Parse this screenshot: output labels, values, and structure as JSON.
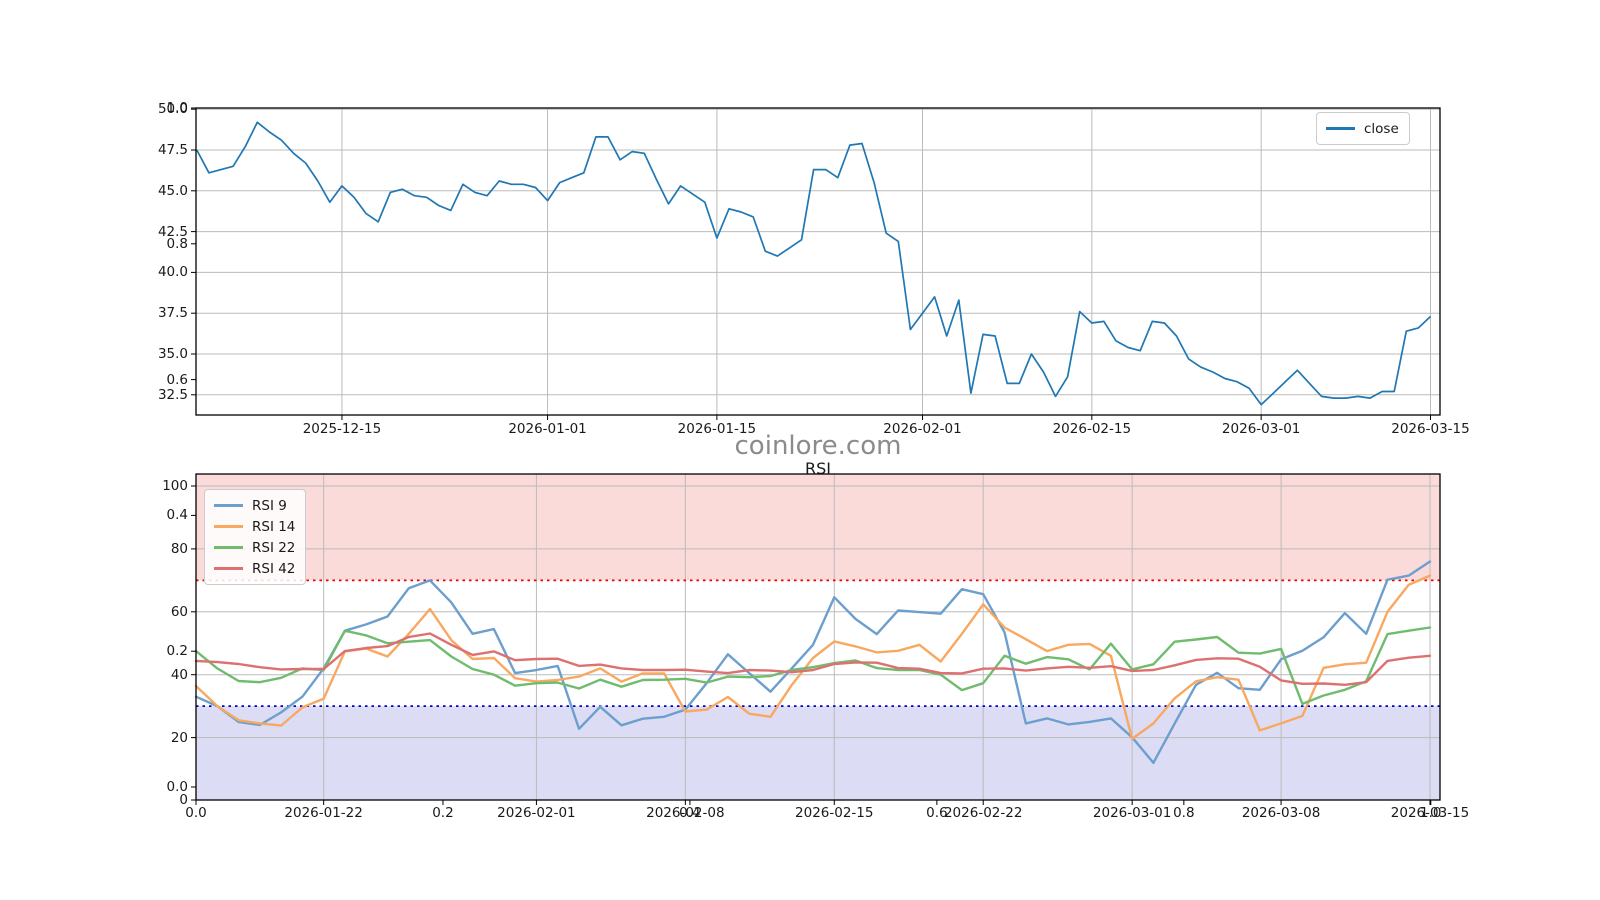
{
  "watermark": "coinlore.com",
  "colors": {
    "close_line": "#1f77b4",
    "rsi9": "#6c9fce",
    "rsi14": "#f8a860",
    "rsi22": "#6fbc6f",
    "rsi42": "#dd7070",
    "overbought_band": "#fbdada",
    "oversold_band": "#dcdcf5",
    "overbought_line": "#ec0000",
    "oversold_line": "#0000cc",
    "grid": "#bbbbbb",
    "watermark_gray": "#8b8b8b"
  },
  "chart_data": [
    {
      "id": "price",
      "type": "line",
      "title": "",
      "x_start_date": "2025-12-03",
      "x_freq": "daily",
      "legend_position": "upper right",
      "grid": true,
      "ylim": [
        31.3,
        50.1
      ],
      "ytick_labels": [
        "50.0",
        "47.5",
        "45.0",
        "42.5",
        "40.0",
        "37.5",
        "35.0",
        "32.5"
      ],
      "ytick_values": [
        50,
        47.5,
        45,
        42.5,
        40,
        37.5,
        35,
        32.5
      ],
      "xtick_labels": [
        "2025-12-15",
        "2026-01-01",
        "2026-01-15",
        "2026-02-01",
        "2026-02-15",
        "2026-03-01",
        "2026-03-15"
      ],
      "xtick_day_index": [
        12,
        29,
        43,
        60,
        74,
        88,
        102
      ],
      "series": [
        {
          "name": "close",
          "color": "#1f77b4",
          "values": [
            47.5,
            46.1,
            46.3,
            46.5,
            47.7,
            49.2,
            48.6,
            48.1,
            47.3,
            46.7,
            45.6,
            44.3,
            45.3,
            44.6,
            43.6,
            43.1,
            44.9,
            45.1,
            44.7,
            44.6,
            44.1,
            43.8,
            45.4,
            44.9,
            44.7,
            45.6,
            45.4,
            45.4,
            45.2,
            44.4,
            45.5,
            45.8,
            46.1,
            48.3,
            48.3,
            46.9,
            47.4,
            47.3,
            45.7,
            44.2,
            45.3,
            44.8,
            44.3,
            42.1,
            43.9,
            43.7,
            43.4,
            41.3,
            41.0,
            41.5,
            42.0,
            46.3,
            46.3,
            45.8,
            47.8,
            47.9,
            45.5,
            42.4,
            41.9,
            36.5,
            37.5,
            38.5,
            36.1,
            38.3,
            32.6,
            36.2,
            36.1,
            33.2,
            33.2,
            35.0,
            33.9,
            32.4,
            33.6,
            37.6,
            36.9,
            37.0,
            35.8,
            35.4,
            35.2,
            37.0,
            36.9,
            36.1,
            34.7,
            34.2,
            33.9,
            33.5,
            33.3,
            32.9,
            31.9,
            32.6,
            33.3,
            34.0,
            33.2,
            32.4,
            32.3,
            32.3,
            32.4,
            32.3,
            32.7,
            32.7,
            36.4,
            36.6,
            37.3
          ]
        }
      ]
    },
    {
      "id": "rsi",
      "type": "line",
      "title": "RSI",
      "x_start_date": "2026-01-16",
      "x_freq": "daily",
      "legend_position": "upper left",
      "grid": true,
      "ylim": [
        0,
        104
      ],
      "ytick_labels": [
        "100",
        "80",
        "60",
        "40",
        "20",
        "0"
      ],
      "ytick_values": [
        100,
        80,
        60,
        40,
        20,
        0
      ],
      "xtick_labels": [
        "2026-01-22",
        "2026-02-01",
        "2026-02-08",
        "2026-02-15",
        "2026-02-22",
        "2026-03-01",
        "2026-03-08",
        "2026-03-15"
      ],
      "xtick_day_index": [
        6,
        16,
        23,
        30,
        37,
        44,
        51,
        58
      ],
      "bands": [
        {
          "from": 70,
          "to": 104,
          "color": "#fbdada",
          "meaning": "overbought"
        },
        {
          "from": 0,
          "to": 30,
          "color": "#dcdcf5",
          "meaning": "oversold"
        }
      ],
      "hlines": [
        {
          "value": 70,
          "color": "#ec0000",
          "style": "dotted"
        },
        {
          "value": 30,
          "color": "#0000cc",
          "style": "dotted"
        }
      ],
      "series": [
        {
          "name": "RSI 9",
          "color": "#6c9fce",
          "values": [
            33,
            30,
            25,
            24,
            28,
            33,
            42,
            54,
            56,
            58.5,
            67.5,
            70,
            63,
            53,
            54.5,
            40.5,
            41.5,
            42.8,
            22.8,
            29.8,
            23.9,
            26,
            26.6,
            28.9,
            37.3,
            46.5,
            40.5,
            34.6,
            42,
            49.5,
            64.6,
            57.7,
            52.9,
            60.4,
            59.9,
            59.4,
            67.2,
            65.6,
            53.5,
            24.5,
            26.1,
            24.2,
            25,
            26.1,
            20.1,
            12,
            24.5,
            36.8,
            40.6,
            35.7,
            35.2,
            44.9,
            47.6,
            51.9,
            59.6,
            53,
            70.2,
            71.5,
            76
          ]
        },
        {
          "name": "RSI 14",
          "color": "#f8a860",
          "values": [
            36.4,
            30,
            25.5,
            24.5,
            23.8,
            29.6,
            32.4,
            47.4,
            48.3,
            45.8,
            53,
            60.9,
            51,
            45,
            45.3,
            38.9,
            37.8,
            38.3,
            39.4,
            42,
            37.8,
            40.4,
            40.4,
            28.3,
            28.9,
            32.9,
            27.6,
            26.6,
            36.7,
            45.3,
            50.6,
            49,
            47.1,
            47.6,
            49.5,
            44.2,
            53,
            62.4,
            55,
            51.3,
            47.5,
            49.5,
            49.8,
            46,
            19.6,
            24.5,
            32.5,
            37.9,
            39.2,
            38.4,
            22.3,
            24.5,
            26.9,
            42.2,
            43.3,
            43.8,
            60,
            68.6,
            71.5
          ]
        },
        {
          "name": "RSI 22",
          "color": "#6fbc6f",
          "values": [
            47.5,
            42,
            38,
            37.6,
            39,
            42,
            41.5,
            54,
            52.5,
            50,
            50.5,
            51,
            45.8,
            41.8,
            40,
            36.5,
            37.3,
            37.5,
            35.6,
            38.4,
            36.2,
            38.3,
            38.4,
            38.7,
            37.5,
            39.4,
            39.2,
            39.6,
            41.5,
            42.4,
            43.7,
            44.5,
            42.1,
            41.5,
            41.5,
            40,
            35.1,
            37.3,
            46,
            43.5,
            45.6,
            44.9,
            41.7,
            49.9,
            41.7,
            43.3,
            50.5,
            51.2,
            52,
            47,
            46.7,
            48.2,
            30.7,
            33.4,
            35.2,
            37.9,
            52.9,
            54,
            55
          ]
        },
        {
          "name": "RSI 42",
          "color": "#dd7070",
          "values": [
            44.4,
            44,
            43.4,
            42.4,
            41.7,
            41.8,
            41.8,
            47.5,
            48.5,
            49.1,
            52,
            53.1,
            49.5,
            46.3,
            47.4,
            44.6,
            45,
            45.1,
            42.8,
            43.2,
            42,
            41.5,
            41.5,
            41.6,
            41,
            40.5,
            41.5,
            41.3,
            40.8,
            41.5,
            43.4,
            43.9,
            43.8,
            42.1,
            41.9,
            40.5,
            40.4,
            41.9,
            42,
            41.3,
            42,
            42.5,
            42.2,
            42.7,
            41.2,
            41.5,
            43,
            44.7,
            45.2,
            45.1,
            42.5,
            38.2,
            37.1,
            37.2,
            36.8,
            37.6,
            44.4,
            45.4,
            46
          ]
        }
      ]
    },
    {
      "id": "overlay-axis",
      "type": "axis-overlay",
      "xtick_labels": [
        "0.0",
        "0.2",
        "0.4",
        "0.6",
        "0.8",
        "1.0"
      ],
      "ytick_labels": [
        "1.0",
        "0.8",
        "0.6",
        "0.4",
        "0.2",
        "0.0"
      ]
    }
  ]
}
